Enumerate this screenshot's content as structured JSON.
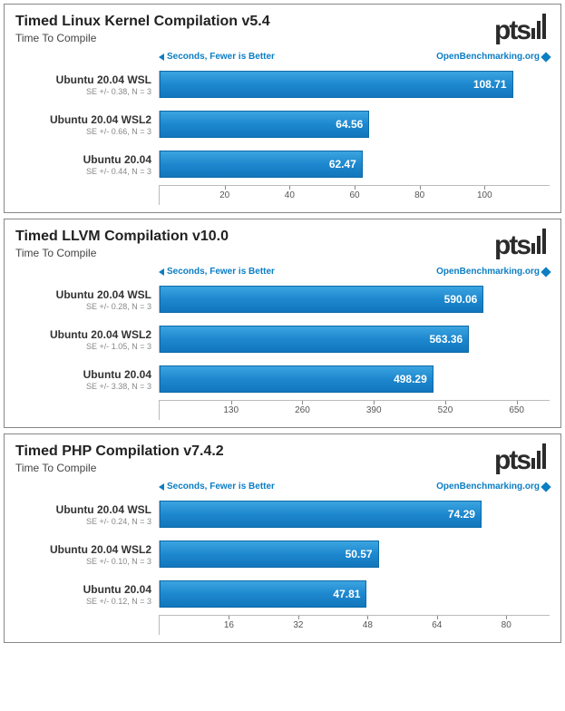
{
  "brand": {
    "logo_text": "pts"
  },
  "legend_text": "Seconds, Fewer is Better",
  "link_text": "OpenBenchmarking.org",
  "colors": {
    "bar_gradient_top": "#3ba4e0",
    "bar_gradient_mid": "#1d88cf",
    "bar_gradient_bot": "#1276bb",
    "bar_border": "#0d6aa8",
    "accent": "#0b7ec4",
    "panel_border": "#888888",
    "axis_text": "#555555",
    "label_text": "#333333",
    "se_text": "#888888",
    "background": "#ffffff"
  },
  "charts": [
    {
      "title": "Timed Linux Kernel Compilation v5.4",
      "subtitle": "Time To Compile",
      "xmax": 120,
      "ticks": [
        20,
        40,
        60,
        80,
        100
      ],
      "bars": [
        {
          "name": "Ubuntu 20.04 WSL",
          "se": "SE +/- 0.38, N = 3",
          "value": 108.71
        },
        {
          "name": "Ubuntu 20.04 WSL2",
          "se": "SE +/- 0.66, N = 3",
          "value": 64.56
        },
        {
          "name": "Ubuntu 20.04",
          "se": "SE +/- 0.44, N = 3",
          "value": 62.47
        }
      ]
    },
    {
      "title": "Timed LLVM Compilation v10.0",
      "subtitle": "Time To Compile",
      "xmax": 710,
      "ticks": [
        130,
        260,
        390,
        520,
        650
      ],
      "bars": [
        {
          "name": "Ubuntu 20.04 WSL",
          "se": "SE +/- 0.28, N = 3",
          "value": 590.06
        },
        {
          "name": "Ubuntu 20.04 WSL2",
          "se": "SE +/- 1.05, N = 3",
          "value": 563.36
        },
        {
          "name": "Ubuntu 20.04",
          "se": "SE +/- 3.38, N = 3",
          "value": 498.29
        }
      ]
    },
    {
      "title": "Timed PHP Compilation v7.4.2",
      "subtitle": "Time To Compile",
      "xmax": 90,
      "ticks": [
        16,
        32,
        48,
        64,
        80
      ],
      "bars": [
        {
          "name": "Ubuntu 20.04 WSL",
          "se": "SE +/- 0.24, N = 3",
          "value": 74.29
        },
        {
          "name": "Ubuntu 20.04 WSL2",
          "se": "SE +/- 0.10, N = 3",
          "value": 50.57
        },
        {
          "name": "Ubuntu 20.04",
          "se": "SE +/- 0.12, N = 3",
          "value": 47.81
        }
      ]
    }
  ]
}
